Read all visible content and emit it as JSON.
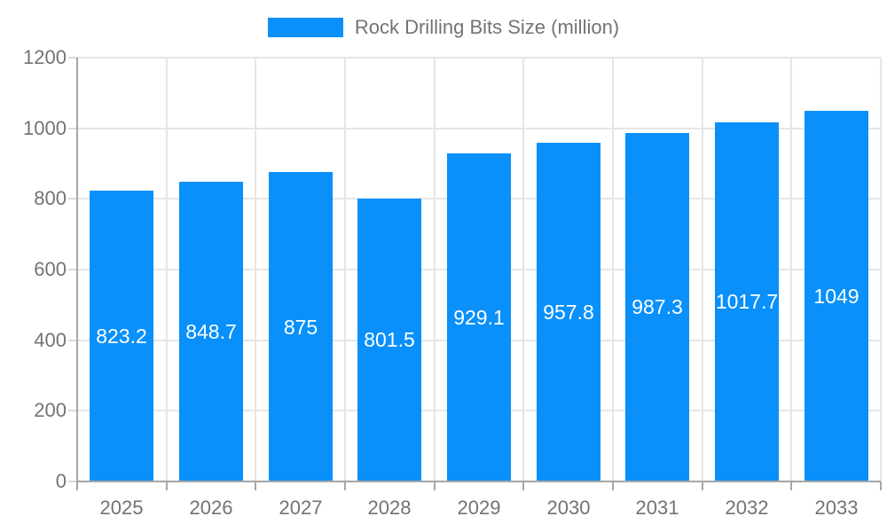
{
  "legend": {
    "label": "Rock Drilling Bits Size (million)"
  },
  "chart_data": {
    "type": "bar",
    "title": "Rock Drilling Bits Size (million)",
    "categories": [
      "2025",
      "2026",
      "2027",
      "2028",
      "2029",
      "2030",
      "2031",
      "2032",
      "2033"
    ],
    "values": [
      823.2,
      848.7,
      875,
      801.5,
      929.1,
      957.8,
      987.3,
      1017.7,
      1049
    ],
    "value_labels": [
      "823.2",
      "848.7",
      "875",
      "801.5",
      "929.1",
      "957.8",
      "987.3",
      "1017.7",
      "1049"
    ],
    "xlabel": "",
    "ylabel": "",
    "ylim": [
      0,
      1200
    ],
    "ytick_step": 200,
    "ytick_labels": [
      "0",
      "200",
      "400",
      "600",
      "800",
      "1000",
      "1200"
    ],
    "grid": true,
    "legend_position": "top",
    "bar_color": "#0990fa",
    "value_label_color": "#ffffff",
    "axis_text_color": "#737373",
    "gridline_color": "#e6e6e6",
    "axis_line_color": "#a6a6a6"
  }
}
